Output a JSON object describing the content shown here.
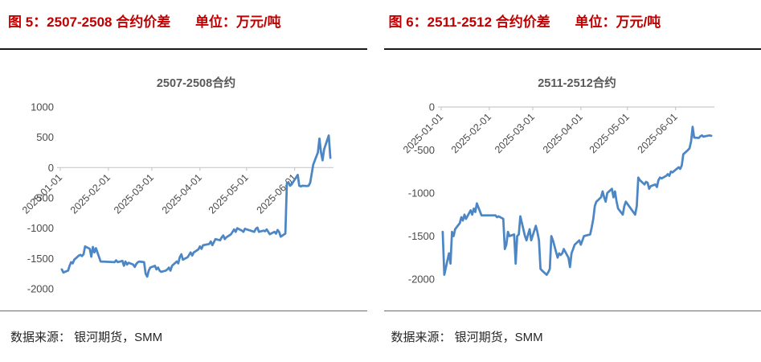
{
  "colors": {
    "header_red": "#C00000",
    "chart_title_gray": "#595959",
    "tick_text": "#4a4a4a",
    "axis_line": "#c9c9c9",
    "line_blue": "#4D86C4",
    "top_rule": "#1a1a1a",
    "bottom_rule": "#6e6e6e",
    "footer_text": "#262626"
  },
  "panels": [
    {
      "header_title": "图 5：2507-2508 合约价差",
      "header_unit": "单位：万元/吨",
      "footer": "数据来源： 银河期货，SMM"
    },
    {
      "header_title": "图 6：2511-2512 合约价差",
      "header_unit": "单位：万元/吨",
      "footer": "数据来源： 银河期货，SMM"
    }
  ],
  "chart_data": [
    {
      "type": "line",
      "title": "2507-2508合约",
      "xlabel": "",
      "ylabel": "",
      "ylim": [
        -2000,
        1000
      ],
      "yticks": [
        1000,
        500,
        0,
        -500,
        -1000,
        -1500,
        -2000
      ],
      "grid": "off",
      "legend": "none",
      "line_color": "#4D86C4",
      "x_unit": "day-of-year-2025",
      "x_tick_days": [
        1,
        32,
        60,
        91,
        121,
        152
      ],
      "x_tick_labels": [
        "2025-01-01",
        "2025-02-01",
        "2025-03-01",
        "2025-04-01",
        "2025-05-01",
        "2025-06-01"
      ],
      "x": [
        2,
        3,
        6,
        7,
        8,
        9,
        10,
        13,
        14,
        15,
        16,
        17,
        20,
        21,
        22,
        23,
        24,
        27,
        36,
        37,
        38,
        41,
        42,
        43,
        44,
        45,
        48,
        49,
        50,
        51,
        52,
        55,
        56,
        57,
        58,
        59,
        62,
        63,
        64,
        65,
        66,
        69,
        70,
        71,
        72,
        73,
        76,
        77,
        78,
        79,
        80,
        83,
        84,
        85,
        86,
        87,
        90,
        91,
        92,
        93,
        97,
        98,
        99,
        100,
        101,
        104,
        105,
        106,
        107,
        108,
        111,
        112,
        113,
        114,
        115,
        118,
        119,
        120,
        126,
        127,
        128,
        129,
        132,
        133,
        134,
        135,
        136,
        139,
        140,
        141,
        142,
        143,
        146,
        147,
        148,
        149,
        150,
        154,
        155,
        156,
        157,
        160,
        161,
        162,
        163,
        164,
        167,
        168,
        169,
        170,
        171,
        174,
        175
      ],
      "y": [
        -1680,
        -1730,
        -1700,
        -1620,
        -1560,
        -1580,
        -1520,
        -1450,
        -1440,
        -1460,
        -1430,
        -1300,
        -1340,
        -1470,
        -1310,
        -1400,
        -1330,
        -1550,
        -1560,
        -1530,
        -1560,
        -1540,
        -1620,
        -1550,
        -1600,
        -1570,
        -1600,
        -1640,
        -1590,
        -1560,
        -1550,
        -1560,
        -1750,
        -1800,
        -1700,
        -1650,
        -1620,
        -1680,
        -1650,
        -1700,
        -1720,
        -1700,
        -1680,
        -1650,
        -1700,
        -1620,
        -1550,
        -1580,
        -1480,
        -1430,
        -1520,
        -1480,
        -1440,
        -1400,
        -1450,
        -1400,
        -1350,
        -1300,
        -1340,
        -1280,
        -1260,
        -1220,
        -1280,
        -1230,
        -1180,
        -1200,
        -1150,
        -1120,
        -1180,
        -1150,
        -1100,
        -1060,
        -1020,
        -1060,
        -1000,
        -1040,
        -1060,
        -1010,
        -1060,
        -1010,
        -990,
        -1060,
        -1040,
        -1050,
        -1020,
        -1060,
        -1100,
        -1060,
        -1090,
        -1030,
        -1060,
        -1140,
        -1090,
        -260,
        -240,
        -300,
        -280,
        -120,
        -300,
        -310,
        -300,
        -305,
        -300,
        -250,
        -100,
        50,
        250,
        480,
        250,
        120,
        300,
        530,
        160
      ]
    },
    {
      "type": "line",
      "title": "2511-2512合约",
      "xlabel": "",
      "ylabel": "",
      "ylim": [
        -2000,
        0
      ],
      "yticks": [
        0,
        -500,
        -1000,
        -1500,
        -2000
      ],
      "grid": "off",
      "legend": "none",
      "line_color": "#4D86C4",
      "x_unit": "day-of-year-2025",
      "x_tick_days": [
        1,
        32,
        60,
        91,
        121,
        152
      ],
      "x_tick_labels": [
        "2025-01-01",
        "2025-02-01",
        "2025-03-01",
        "2025-04-01",
        "2025-05-01",
        "2025-06-01"
      ],
      "x": [
        2,
        3,
        6,
        7,
        8,
        9,
        10,
        13,
        14,
        15,
        16,
        17,
        20,
        21,
        22,
        23,
        24,
        27,
        36,
        37,
        38,
        41,
        42,
        43,
        44,
        45,
        48,
        49,
        50,
        51,
        52,
        55,
        56,
        57,
        58,
        59,
        62,
        63,
        64,
        65,
        66,
        69,
        70,
        71,
        72,
        73,
        76,
        77,
        78,
        79,
        80,
        83,
        84,
        85,
        86,
        87,
        90,
        91,
        92,
        93,
        97,
        98,
        99,
        100,
        101,
        104,
        105,
        106,
        107,
        108,
        111,
        112,
        113,
        114,
        115,
        118,
        119,
        120,
        126,
        127,
        128,
        129,
        132,
        133,
        134,
        135,
        136,
        139,
        140,
        141,
        142,
        143,
        146,
        147,
        148,
        149,
        150,
        154,
        155,
        156,
        157,
        160,
        161,
        162,
        163,
        164,
        167,
        168,
        169,
        170,
        171,
        174,
        175
      ],
      "y": [
        -1450,
        -1950,
        -1700,
        -1820,
        -1450,
        -1500,
        -1420,
        -1350,
        -1280,
        -1320,
        -1250,
        -1300,
        -1200,
        -1250,
        -1180,
        -1220,
        -1120,
        -1260,
        -1260,
        -1280,
        -1270,
        -1300,
        -1650,
        -1600,
        -1450,
        -1500,
        -1480,
        -1820,
        -1500,
        -1480,
        -1270,
        -1500,
        -1550,
        -1480,
        -1420,
        -1550,
        -1380,
        -1450,
        -1550,
        -1880,
        -1900,
        -1950,
        -1920,
        -1880,
        -1500,
        -1550,
        -1750,
        -1700,
        -1720,
        -1700,
        -1650,
        -1750,
        -1860,
        -1700,
        -1650,
        -1600,
        -1550,
        -1600,
        -1550,
        -1500,
        -1480,
        -1400,
        -1300,
        -1150,
        -1100,
        -1050,
        -980,
        -1050,
        -1100,
        -1000,
        -950,
        -1050,
        -980,
        -1100,
        -1180,
        -1250,
        -1150,
        -1100,
        -1250,
        -1150,
        -820,
        -850,
        -900,
        -870,
        -880,
        -950,
        -920,
        -900,
        -930,
        -850,
        -820,
        -830,
        -800,
        -780,
        -800,
        -750,
        -760,
        -700,
        -720,
        -680,
        -550,
        -500,
        -480,
        -400,
        -230,
        -355,
        -360,
        -340,
        -330,
        -345,
        -340,
        -330,
        -335
      ]
    }
  ]
}
